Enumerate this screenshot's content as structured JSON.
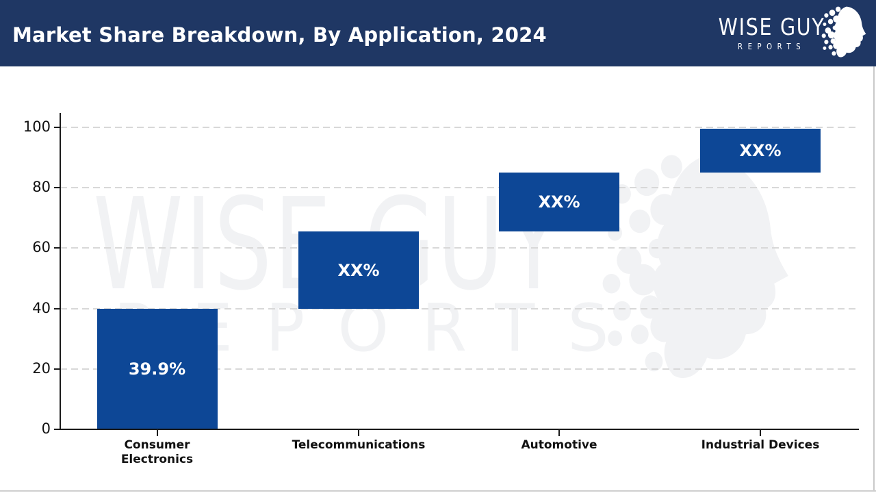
{
  "header": {
    "title": "Market Share Breakdown, By Application, 2024",
    "logo": {
      "line1": "WISE GUY",
      "line2": "REPORTS"
    }
  },
  "watermark": {
    "line1": "WISE GUY",
    "line2": "REPORTS"
  },
  "chart_data": {
    "type": "bar",
    "subtype": "stacked-waterfall-segments",
    "title": "Market Share Breakdown, By Application, 2024",
    "categories": [
      "Consumer\nElectronics",
      "Telecommunications",
      "Automotive",
      "Industrial Devices"
    ],
    "bars": [
      {
        "category": "Consumer Electronics",
        "base": 0,
        "top": 39.9,
        "label": "39.9%"
      },
      {
        "category": "Telecommunications",
        "base": 39.9,
        "top": 65.5,
        "label": "XX%"
      },
      {
        "category": "Automotive",
        "base": 65.5,
        "top": 85.0,
        "label": "XX%"
      },
      {
        "category": "Industrial Devices",
        "base": 85.0,
        "top": 99.6,
        "label": "XX%"
      }
    ],
    "xlabel": "",
    "ylabel": "",
    "ylim": [
      0,
      100
    ],
    "yticks": [
      0,
      20,
      40,
      60,
      80,
      100
    ],
    "grid": "horizontal-dashed",
    "legend": false,
    "bar_color": "#0d4796",
    "bar_label_color": "#ffffff"
  },
  "colors": {
    "header_bg": "#1f3764",
    "title_text": "#ffffff",
    "bar": "#0d4796",
    "grid": "#d8d8d8",
    "axis": "#1a1a1a",
    "watermark": "#f1f2f4",
    "frame_line": "#c9c9c9"
  }
}
